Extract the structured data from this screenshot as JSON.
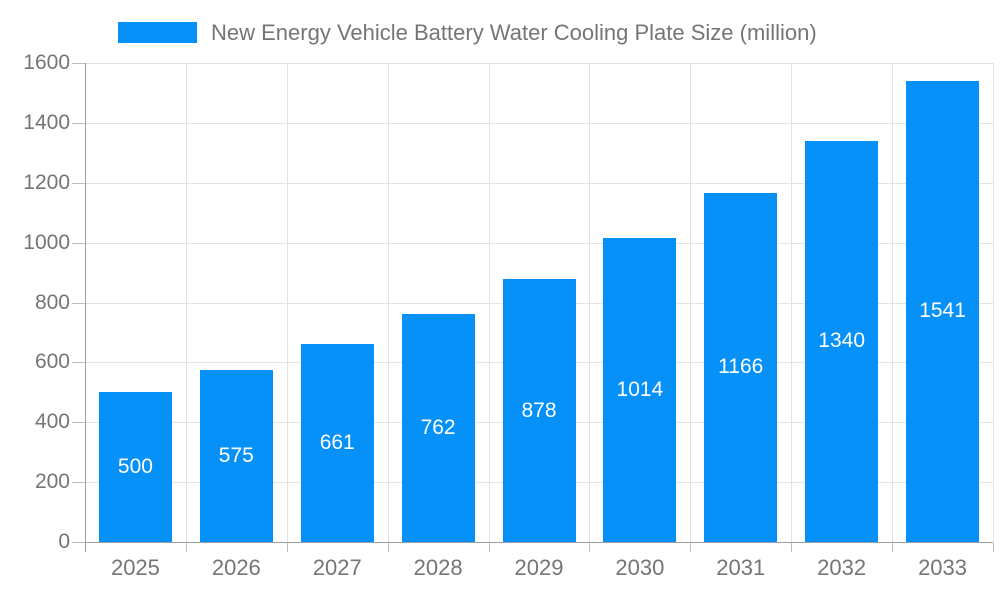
{
  "chart_data": {
    "type": "bar",
    "title": "",
    "legend": "New Energy Vehicle Battery Water Cooling Plate Size (million)",
    "legend_position": "top",
    "categories": [
      "2025",
      "2026",
      "2027",
      "2028",
      "2029",
      "2030",
      "2031",
      "2032",
      "2033"
    ],
    "values": [
      500,
      575,
      661,
      762,
      878,
      1014,
      1166,
      1340,
      1541
    ],
    "value_labels": [
      "500",
      "575",
      "661",
      "762",
      "878",
      "1014",
      "1166",
      "1340",
      "1541"
    ],
    "xlabel": "",
    "ylabel": "",
    "ylim": [
      0,
      1600
    ],
    "yticks": [
      0,
      200,
      400,
      600,
      800,
      1000,
      1200,
      1400,
      1600
    ],
    "ytick_labels": [
      "0",
      "200",
      "400",
      "600",
      "800",
      "1000",
      "1200",
      "1400",
      "1600"
    ],
    "grid": true,
    "colors": {
      "bar": "#0691F8",
      "gridline": "#E3E3E3",
      "axis": "#9E9E9E",
      "tick": "#BDBDBD",
      "label": "#757575",
      "value_label": "#FFFFFF",
      "background": "#FFFFFF"
    }
  }
}
